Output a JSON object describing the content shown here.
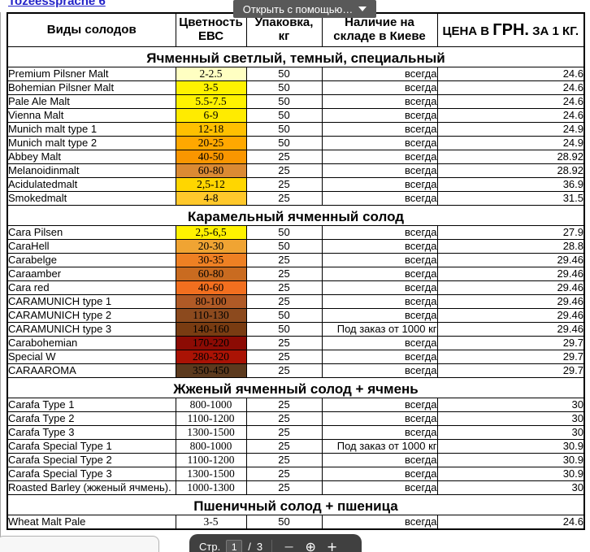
{
  "window": {
    "top_link": "Tozeessprache 6",
    "open_with_button": {
      "label": "Открыть с помощью…"
    }
  },
  "colors": {
    "open_with_bg": "#595959",
    "toolbar_bg": "#404040",
    "table_border": "#000000",
    "link_blue": "#2323c8"
  },
  "table": {
    "headers": {
      "malt_types": "Виды солодов",
      "ebc_line1": "Цветность",
      "ebc_line2": "ЕВС",
      "pack_line1": "Упаковка,",
      "pack_line2": "кг",
      "stock_line1": "Наличие на",
      "stock_line2": "складе в Киеве",
      "price_pre": "ЦЕНА В ",
      "price_big": "ГРН.",
      "price_post": " ЗА 1 КГ."
    },
    "sections": [
      {
        "title": "Ячменный светлый, темный, специальный",
        "rows": [
          {
            "name": "Premium Pilsner Malt",
            "ebc": "2-2.5",
            "color": "#FFFFC2",
            "pack": "50",
            "stock": "всегда",
            "price": "24.6"
          },
          {
            "name": "Bohemian Pilsner Malt",
            "ebc": "3-5",
            "color": "#FFF200",
            "pack": "50",
            "stock": "всегда",
            "price": "24.6"
          },
          {
            "name": "Pale Ale Malt",
            "ebc": "5.5-7.5",
            "color": "#FFF200",
            "pack": "50",
            "stock": "всегда",
            "price": "24.6"
          },
          {
            "name": "Vienna Malt",
            "ebc": "6-9",
            "color": "#FFEB00",
            "pack": "50",
            "stock": "всегда",
            "price": "24.6"
          },
          {
            "name": "Munich malt  type 1",
            "ebc": "12-18",
            "color": "#FFC000",
            "pack": "50",
            "stock": "всегда",
            "price": "24.9"
          },
          {
            "name": "Munich malt  type 2",
            "ebc": "20-25",
            "color": "#FFA800",
            "pack": "50",
            "stock": "всегда",
            "price": "24.9"
          },
          {
            "name": "Abbey Malt",
            "ebc": "40-50",
            "color": "#FA9600",
            "pack": "25",
            "stock": "всегда",
            "price": "28.92"
          },
          {
            "name": "Melanoidinmalt",
            "ebc": "60-80",
            "color": "#DB8A33",
            "pack": "25",
            "stock": "всегда",
            "price": "28.92"
          },
          {
            "name": "Acidulatedmalt",
            "ebc": "2,5-12",
            "color": "#FFD600",
            "pack": "25",
            "stock": "всегда",
            "price": "36.9"
          },
          {
            "name": "Smokedmalt",
            "ebc": "4-8",
            "color": "#FFC82B",
            "pack": "25",
            "stock": "всегда",
            "price": "31.5"
          }
        ]
      },
      {
        "title": "Карамельный ячменный солод",
        "rows": [
          {
            "name": "Cara Pilsen",
            "ebc": "2,5-6,5",
            "color": "#FFF200",
            "pack": "50",
            "stock": "всегда",
            "price": "27.9"
          },
          {
            "name": "CaraHell",
            "ebc": "20-30",
            "color": "#F0A433",
            "pack": "50",
            "stock": "всегда",
            "price": "28.8"
          },
          {
            "name": "Carabelge",
            "ebc": "30-35",
            "color": "#EE8023",
            "pack": "25",
            "stock": "всегда",
            "price": "29.46"
          },
          {
            "name": "Caraamber",
            "ebc": "60-80",
            "color": "#C96B20",
            "pack": "25",
            "stock": "всегда",
            "price": "29.46"
          },
          {
            "name": "Cara red",
            "ebc": "40-60",
            "color": "#F26F1F",
            "pack": "25",
            "stock": "всегда",
            "price": "29.46"
          },
          {
            "name": "CARAMUNICH type 1",
            "ebc": "80-100",
            "color": "#B05A26",
            "pack": "25",
            "stock": "всегда",
            "price": "29.46"
          },
          {
            "name": "CARAMUNICH  type 2",
            "ebc": "110-130",
            "color": "#8C4A1E",
            "pack": "50",
            "stock": "всегда",
            "price": "29.46"
          },
          {
            "name": "CARAMUNICH  type 3",
            "ebc": "140-160",
            "color": "#793C12",
            "pack": "50",
            "stock": "Под заказ от 1000 кг",
            "price": "29.46"
          },
          {
            "name": "Carabohemian",
            "ebc": "170-220",
            "color": "#8C0B04",
            "pack": "25",
            "stock": "всегда",
            "price": "29.7"
          },
          {
            "name": "Special W",
            "ebc": "280-320",
            "color": "#AA1305",
            "pack": "25",
            "stock": "всегда",
            "price": "29.7"
          },
          {
            "name": "CARAAROMA",
            "ebc": "350-450",
            "color": "#5C3A1E",
            "pack": "25",
            "stock": "всегда",
            "price": "29.7"
          }
        ]
      },
      {
        "title": "Жженый ячменный солод + ячмень",
        "rows": [
          {
            "name": "Carafa Type 1",
            "ebc": "800-1000",
            "color": null,
            "pack": "25",
            "stock": "всегда",
            "price": "30"
          },
          {
            "name": "Carafa Type 2",
            "ebc": "1100-1200",
            "color": null,
            "pack": "25",
            "stock": "всегда",
            "price": "30"
          },
          {
            "name": "Carafa  Type 3",
            "ebc": "1300-1500",
            "color": null,
            "pack": "25",
            "stock": "всегда",
            "price": "30"
          },
          {
            "name": "Carafa Special  Type 1",
            "ebc": "800-1000",
            "color": null,
            "pack": "25",
            "stock": "Под заказ от 1000 кг",
            "price": "30.9"
          },
          {
            "name": "Carafa  Special Type 2",
            "ebc": "1100-1200",
            "color": null,
            "pack": "25",
            "stock": "всегда",
            "price": "30.9"
          },
          {
            "name": "Carafa Special Type 3",
            "ebc": "1300-1500",
            "color": null,
            "pack": "25",
            "stock": "всегда",
            "price": "30.9"
          },
          {
            "name": "Roasted Barley (жженый ячмень).",
            "ebc": "1000-1300",
            "color": null,
            "pack": "25",
            "stock": "всегда",
            "price": "30"
          }
        ]
      },
      {
        "title": "Пшеничный солод + пшеница",
        "rows": [
          {
            "name": "Wheat Malt Pale",
            "ebc": "3-5",
            "color": null,
            "pack": "50",
            "stock": "всегда",
            "price": "24.6"
          }
        ]
      }
    ]
  },
  "toolbar": {
    "page_label": "Стр.",
    "page_current": "1",
    "page_divider": "/",
    "page_total": "3",
    "zoom_out_icon": "−",
    "zoom_icon": "⊕",
    "zoom_in_icon": "+"
  }
}
